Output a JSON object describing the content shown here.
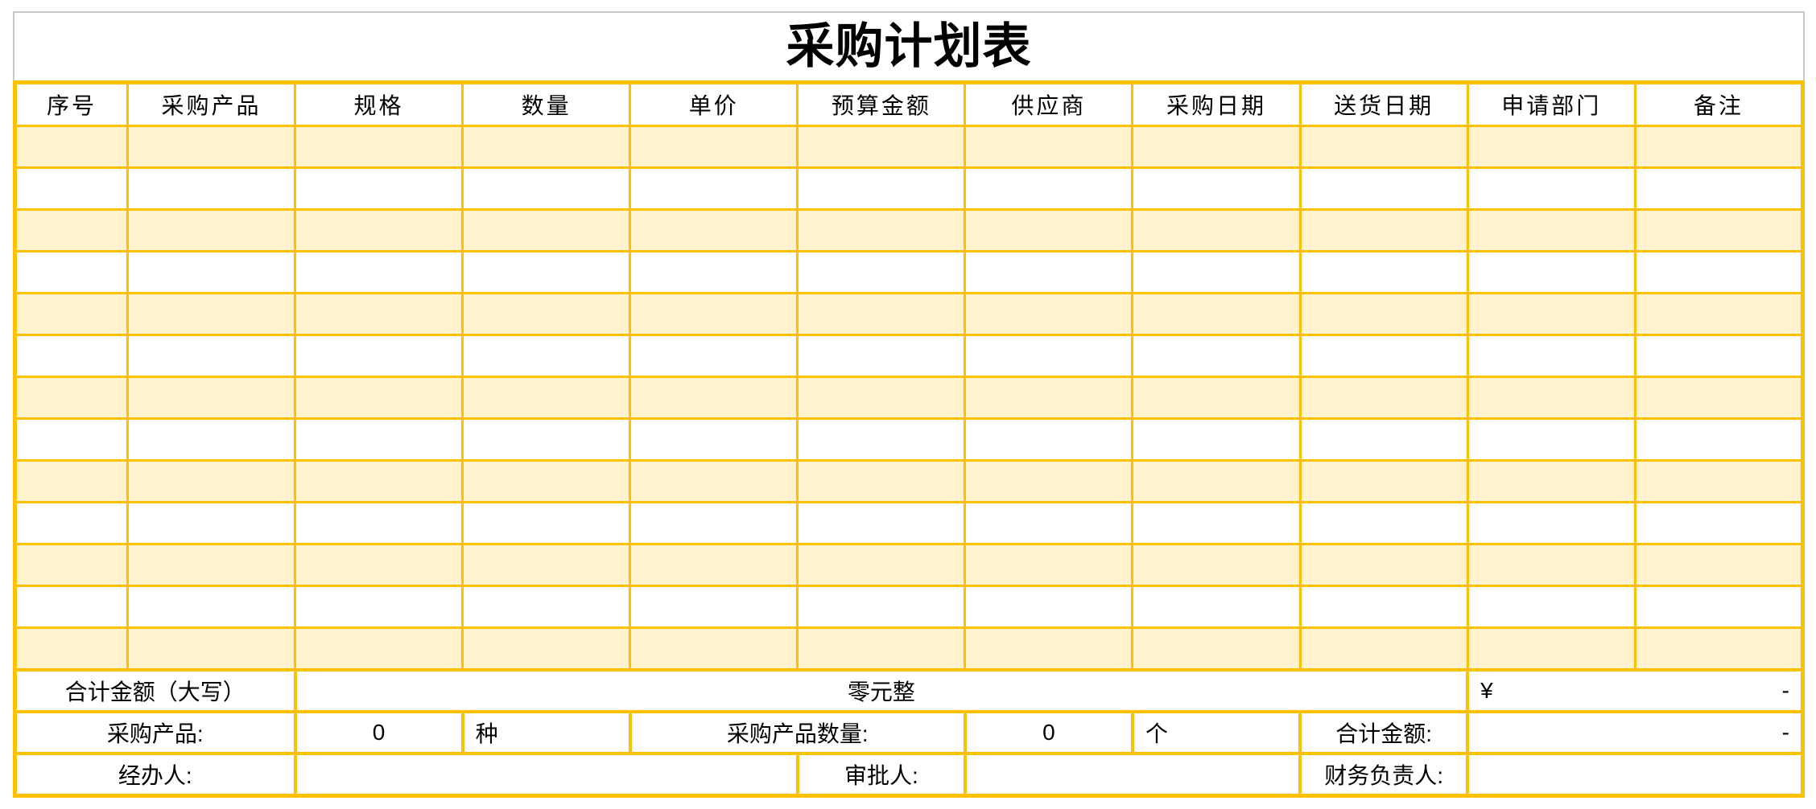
{
  "title": "采购计划表",
  "colors": {
    "border_gold": "#FFC000",
    "row_alt_fill": "#FFF2CC",
    "row_white": "#FFFFFF",
    "frame_gray": "#C9C9C9",
    "text": "#000000"
  },
  "table": {
    "columns": 11,
    "empty_rows": 13,
    "headers": [
      "序号",
      "采购产品",
      "规格",
      "数量",
      "单价",
      "预算金额",
      "供应商",
      "采购日期",
      "送货日期",
      "申请部门",
      "备注"
    ]
  },
  "summary": {
    "amount_words_label": "合计金额（大写）",
    "amount_words_value": "零元整",
    "currency_symbol": "¥",
    "amount_value": "-",
    "products_label": "采购产品:",
    "products_count": "0",
    "products_unit": "种",
    "quantity_label": "采购产品数量:",
    "quantity_count": "0",
    "quantity_unit": "个",
    "total_label": "合计金额:",
    "total_value": "-"
  },
  "signatures": {
    "handler_label": "经办人:",
    "approver_label": "审批人:",
    "finance_label": "财务负责人:"
  }
}
